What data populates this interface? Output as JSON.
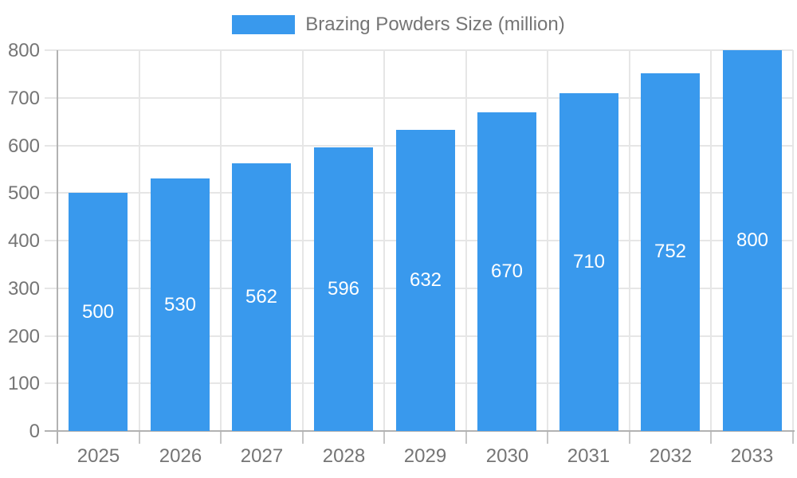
{
  "legend": {
    "label": "Brazing Powders Size (million)"
  },
  "colors": {
    "bar": "#3999ED",
    "axis": "#B2B2B2",
    "grid": "#E6E6E6",
    "tick": "#C6C6C6",
    "axis_text": "#757575",
    "value_text": "#FFFFFF",
    "background": "#FFFFFF"
  },
  "chart_data": {
    "type": "bar",
    "title": "",
    "series_name": "Brazing Powders Size (million)",
    "categories": [
      "2025",
      "2026",
      "2027",
      "2028",
      "2029",
      "2030",
      "2031",
      "2032",
      "2033"
    ],
    "values": [
      500,
      530,
      562,
      596,
      632,
      670,
      710,
      752,
      800
    ],
    "xlabel": "",
    "ylabel": "",
    "ylim": [
      0,
      800
    ],
    "ytick_step": 100,
    "yticks": [
      0,
      100,
      200,
      300,
      400,
      500,
      600,
      700,
      800
    ],
    "grid": "on",
    "legend_position": "top-center",
    "value_labels": "inside-center"
  }
}
